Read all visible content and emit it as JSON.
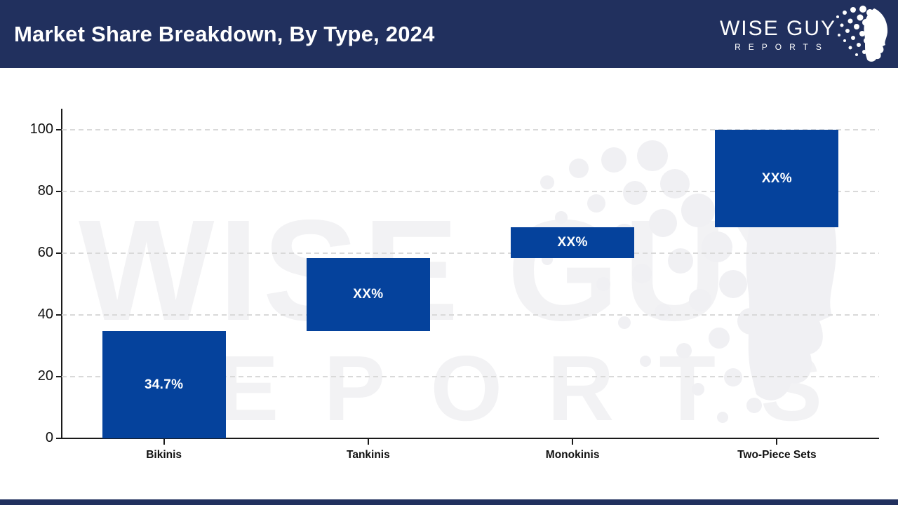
{
  "header": {
    "title": "Market Share Breakdown, By Type, 2024",
    "logo": {
      "line1": "WISE GUY",
      "line2": "REPORTS"
    }
  },
  "watermark": {
    "line1": "WISE GUY",
    "line2": "REPORTS"
  },
  "colors": {
    "header_navy": "#21305e",
    "bar_blue": "#05429c",
    "grid_gray": "#d9d9d9",
    "axis_black": "#1a1a1a",
    "watermark_gray": "#f2f2f4",
    "bar_label_white": "#ffffff"
  },
  "chart_data": {
    "type": "bar",
    "subtype": "waterfall",
    "title": "Market Share Breakdown, By Type, 2024",
    "categories": [
      "Bikinis",
      "Tankinis",
      "Monokinis",
      "Two-Piece Sets"
    ],
    "segments": [
      {
        "category": "Bikinis",
        "start": 0,
        "end": 34.7,
        "value": 34.7,
        "label": "34.7%"
      },
      {
        "category": "Tankinis",
        "start": 34.7,
        "end": 58.4,
        "value": 23.7,
        "label": "XX%"
      },
      {
        "category": "Monokinis",
        "start": 58.4,
        "end": 68.4,
        "value": 10.0,
        "label": "XX%"
      },
      {
        "category": "Two-Piece Sets",
        "start": 68.4,
        "end": 100,
        "value": 31.6,
        "label": "XX%"
      }
    ],
    "y_ticks": [
      0,
      20,
      40,
      60,
      80,
      100
    ],
    "ylim": [
      0,
      107
    ],
    "xlabel": "",
    "ylabel": "",
    "grid": "horizontal-dashed",
    "legend": "none",
    "bar_color": "#05429c",
    "value_label_color": "#ffffff"
  }
}
